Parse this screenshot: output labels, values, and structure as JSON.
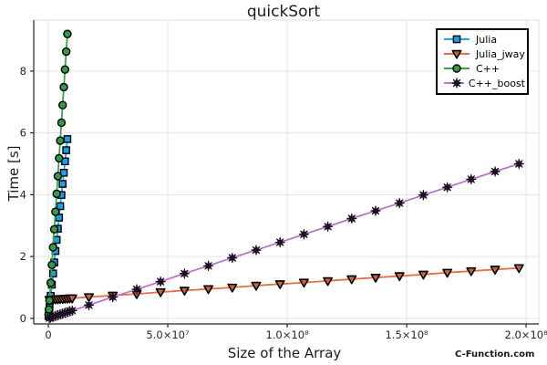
{
  "watermark": {
    "text": "C-Function.com"
  },
  "chart_data": {
    "type": "line",
    "title": "quickSort",
    "xlabel": "Size of the Array",
    "ylabel": "Time [s]",
    "xlim": [
      -6100000,
      205300000
    ],
    "ylim": [
      -0.18,
      9.65
    ],
    "grid": true,
    "legend_position": "top-right",
    "grid_color": "#e3e3e3",
    "axis_color": "#262626",
    "xticks": {
      "values": [
        0,
        50000000,
        100000000,
        150000000,
        200000000
      ],
      "labels": [
        "0",
        "5.0×10⁷",
        "1.0×10⁸",
        "1.5×10⁸",
        "2.0×10⁸"
      ]
    },
    "yticks": {
      "values": [
        0,
        2,
        4,
        6,
        8
      ],
      "labels": [
        "0",
        "2",
        "4",
        "6",
        "8"
      ]
    },
    "series": [
      {
        "name": "Julia",
        "color": "#22A7EC",
        "marker": "square",
        "marker_color": "#1B9FE8",
        "x": [
          100000,
          250000,
          500000,
          1000000,
          1500000,
          2000000,
          2500000,
          3000000,
          3500000,
          4000000,
          4500000,
          5000000,
          5500000,
          6000000,
          6500000,
          7000000,
          7500000,
          8000000
        ],
        "y": [
          0.07,
          0.18,
          0.36,
          0.73,
          1.09,
          1.45,
          1.81,
          2.18,
          2.54,
          2.9,
          3.26,
          3.63,
          3.99,
          4.35,
          4.71,
          5.08,
          5.44,
          5.8
        ]
      },
      {
        "name": "Julia_jway",
        "color": "#E26E47",
        "marker": "triangle-down",
        "marker_color": "#C96342",
        "x": [
          500000,
          1000000,
          2000000,
          3000000,
          4000000,
          5000000,
          6000000,
          7000000,
          8000000,
          9000000,
          10000000,
          17000000,
          27000000,
          37000000,
          47000000,
          57000000,
          67000000,
          77000000,
          87000000,
          97000000,
          107000000,
          117000000,
          127000000,
          137000000,
          147000000,
          157000000,
          167000000,
          177000000,
          187000000,
          197000000
        ],
        "y": [
          0.6,
          0.61,
          0.61,
          0.62,
          0.62,
          0.63,
          0.63,
          0.64,
          0.64,
          0.65,
          0.65,
          0.69,
          0.74,
          0.79,
          0.85,
          0.9,
          0.95,
          1.0,
          1.06,
          1.11,
          1.16,
          1.21,
          1.27,
          1.32,
          1.37,
          1.42,
          1.48,
          1.53,
          1.58,
          1.63
        ]
      },
      {
        "name": "C++",
        "color": "#3DA44E",
        "marker": "circle",
        "marker_color": "#339A47",
        "x": [
          100000,
          250000,
          500000,
          1000000,
          1500000,
          2000000,
          2500000,
          3000000,
          3500000,
          4000000,
          4500000,
          5000000,
          5500000,
          6000000,
          6500000,
          7000000,
          7500000,
          8000000
        ],
        "y": [
          0.12,
          0.29,
          0.58,
          1.15,
          1.73,
          2.3,
          2.88,
          3.45,
          4.03,
          4.6,
          5.18,
          5.75,
          6.33,
          6.9,
          7.48,
          8.05,
          8.63,
          9.2
        ]
      },
      {
        "name": "C++_boost",
        "color": "#C271D2",
        "marker": "star",
        "marker_color": "#1B1324",
        "x": [
          500000,
          1000000,
          2000000,
          3000000,
          4000000,
          5000000,
          6000000,
          7000000,
          8000000,
          9000000,
          10000000,
          17000000,
          27000000,
          37000000,
          47000000,
          57000000,
          67000000,
          77000000,
          87000000,
          97000000,
          107000000,
          117000000,
          127000000,
          137000000,
          147000000,
          157000000,
          167000000,
          177000000,
          187000000,
          197000000
        ],
        "y": [
          0.01,
          0.03,
          0.05,
          0.08,
          0.1,
          0.13,
          0.15,
          0.18,
          0.2,
          0.23,
          0.25,
          0.43,
          0.69,
          0.94,
          1.19,
          1.45,
          1.7,
          1.96,
          2.21,
          2.46,
          2.72,
          2.97,
          3.23,
          3.48,
          3.73,
          3.99,
          4.24,
          4.5,
          4.75,
          5.0
        ]
      }
    ]
  }
}
